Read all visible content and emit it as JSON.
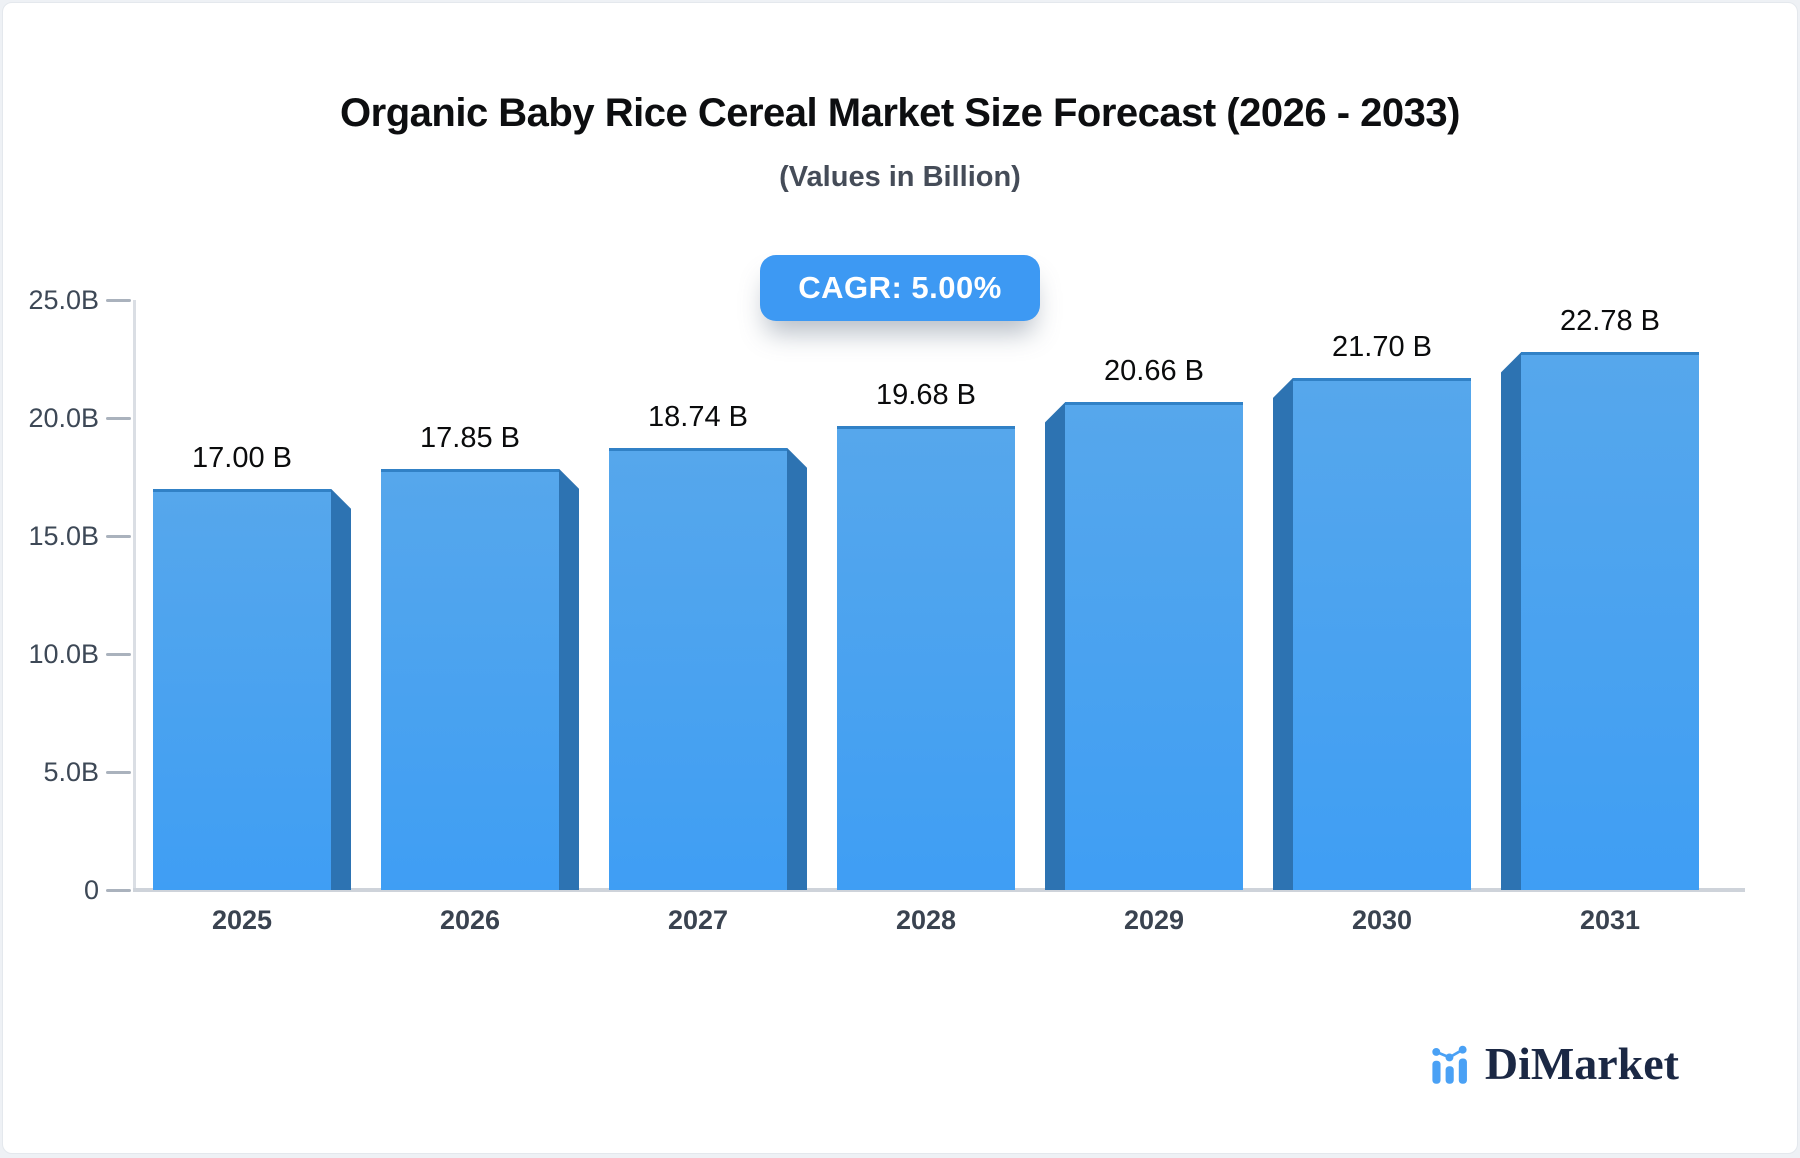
{
  "page": {
    "background": "#eef1f5",
    "card_background": "#ffffff"
  },
  "header": {
    "title": "Organic Baby Rice Cereal Market Size Forecast (2026 - 2033)",
    "subtitle": "(Values in Billion)"
  },
  "badge": {
    "label": "CAGR: 5.00%",
    "background": "#3d99f3",
    "text_color": "#ffffff"
  },
  "chart_data": {
    "type": "bar",
    "title": "Organic Baby Rice Cereal Market Size Forecast (2026 - 2033)",
    "subtitle": "(Values in Billion)",
    "categories": [
      "2025",
      "2026",
      "2027",
      "2028",
      "2029",
      "2030",
      "2031"
    ],
    "values": [
      17.0,
      17.85,
      18.74,
      19.68,
      20.66,
      21.7,
      22.78
    ],
    "value_labels": [
      "17.00 B",
      "17.85 B",
      "18.74 B",
      "19.68 B",
      "20.66 B",
      "21.70 B",
      "22.78 B"
    ],
    "unit": "Billion",
    "ylim": [
      0,
      25
    ],
    "y_tick_labels": [
      "25.0B",
      "20.0B",
      "15.0B",
      "10.0B",
      "5.0B",
      "0"
    ],
    "y_tick_values": [
      25,
      20,
      15,
      10,
      5,
      0
    ],
    "grid": false,
    "legend": false,
    "bar_style": {
      "face_top_color": "#56a7ec",
      "face_bottom_color": "#3f9ef4",
      "top_edge_color": "#3181c6",
      "side_shade_color": "#2d73b2",
      "effect": "3d-perspective-from-center"
    }
  },
  "logo": {
    "text": "DiMarket",
    "icon": "mini-bar-chart-icon",
    "text_color": "#1b2844",
    "icon_color": "#4aa1f5"
  }
}
